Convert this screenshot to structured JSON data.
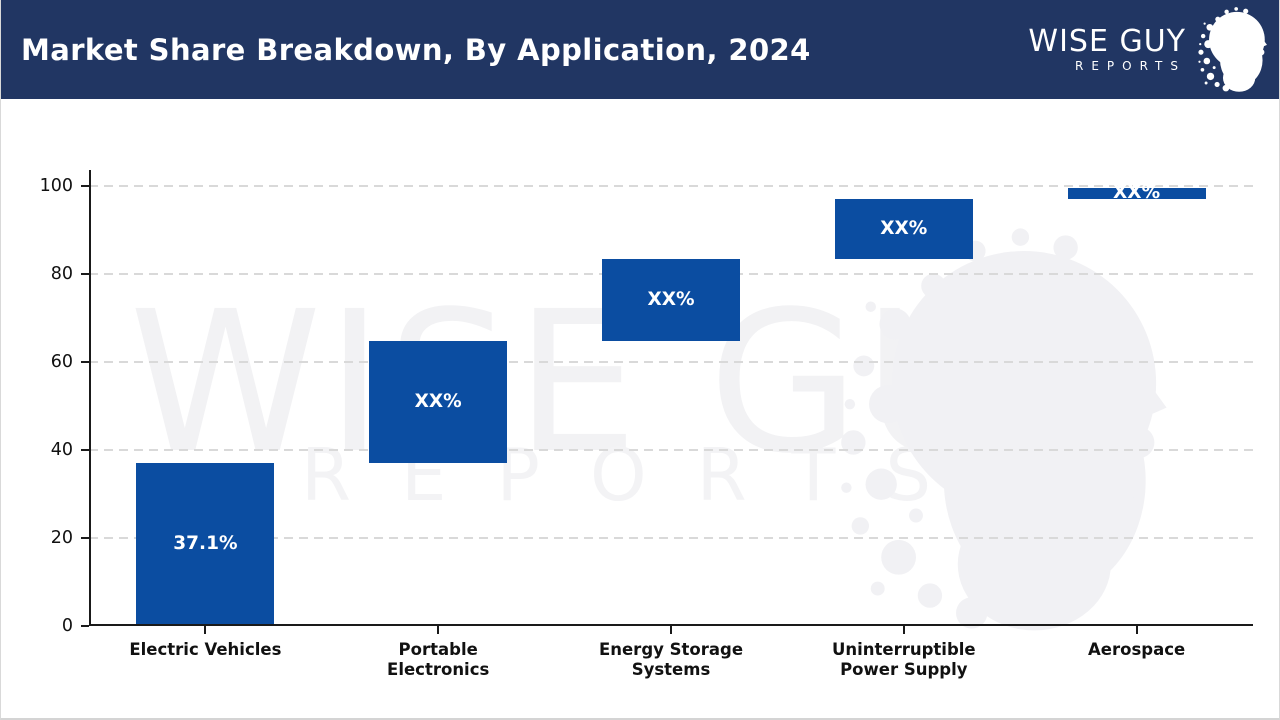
{
  "header": {
    "title": "Market Share Breakdown, By Application, 2024",
    "logo": {
      "line1": "WISE GUY",
      "line2": "REPORTS"
    }
  },
  "watermark": {
    "line1": "WISE GUY",
    "line2": "REPORTS"
  },
  "chart_data": {
    "type": "bar",
    "subtype": "waterfall",
    "title": "Market Share Breakdown, By Application, 2024",
    "categories": [
      "Electric Vehicles",
      "Portable Electronics",
      "Energy Storage Systems",
      "Uninterruptible Power Supply",
      "Aerospace"
    ],
    "category_lines": [
      [
        "Electric Vehicles"
      ],
      [
        "Portable",
        "Electronics"
      ],
      [
        "Energy Storage",
        "Systems"
      ],
      [
        "Uninterruptible",
        "Power Supply"
      ],
      [
        "Aerospace"
      ]
    ],
    "segments": [
      {
        "category": "Electric Vehicles",
        "start": 0,
        "end": 37.1,
        "label": "37.1%"
      },
      {
        "category": "Portable Electronics",
        "start": 37.1,
        "end": 64.8,
        "label": "XX%"
      },
      {
        "category": "Energy Storage Systems",
        "start": 64.8,
        "end": 83.4,
        "label": "XX%"
      },
      {
        "category": "Uninterruptible Power Supply",
        "start": 83.4,
        "end": 97.0,
        "label": "XX%"
      },
      {
        "category": "Aerospace",
        "start": 97.0,
        "end": 99.5,
        "label": "XX%"
      }
    ],
    "yticks": [
      0,
      20,
      40,
      60,
      80,
      100
    ],
    "ylim": [
      0,
      104
    ],
    "grid": "horizontal-dashed",
    "legend": "none",
    "bar_color": "#0b4da1",
    "bar_label_color": "#ffffff"
  },
  "colors": {
    "header_bg": "#213663",
    "bar": "#0b4da1",
    "axis": "#1a1a1a",
    "gridline": "#d9d9d9",
    "watermark": "#f1f1f4",
    "title_text": "#ffffff"
  }
}
